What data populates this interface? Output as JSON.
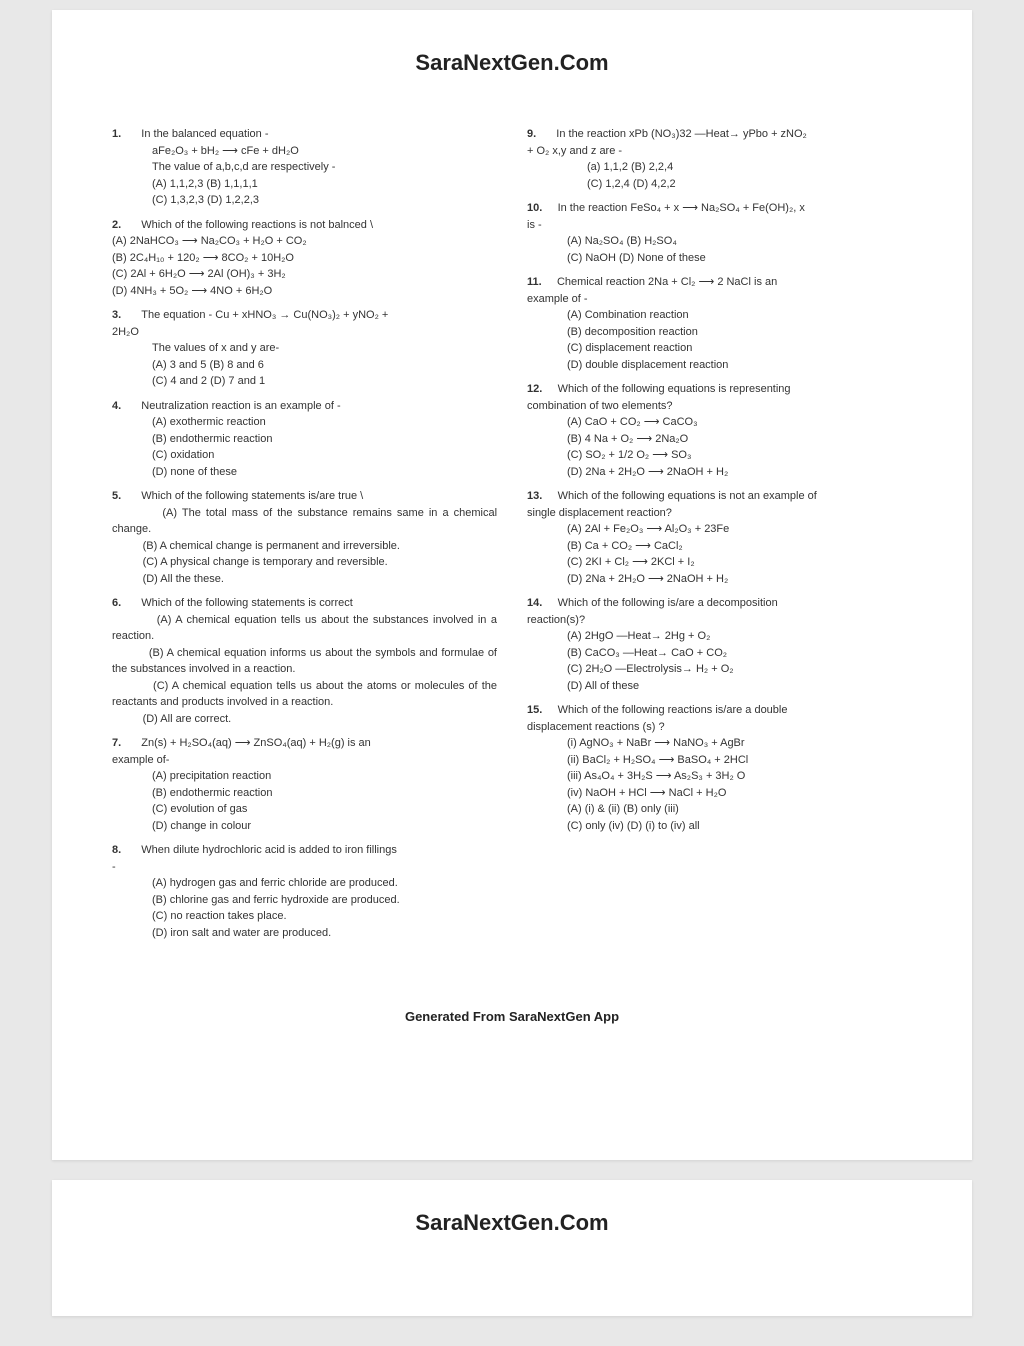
{
  "site": {
    "title": "SaraNextGen.Com"
  },
  "footer": {
    "text": "Generated From SaraNextGen App"
  },
  "left": [
    {
      "num": "1.",
      "text": "In the balanced equation -",
      "lines": [
        "aFe₂O₃ + bH₂ ⟶ cFe + dH₂O",
        "The value of a,b,c,d are respectively -",
        "(A) 1,1,2,3   (B) 1,1,1,1",
        "(C) 1,3,2,3   (D) 1,2,2,3"
      ]
    },
    {
      "num": "2.",
      "text": "Which of the following reactions is not balnced \\",
      "flat": [
        "(A) 2NaHCO₃ ⟶ Na₂CO₃ + H₂O + CO₂",
        "(B) 2C₄H₁₀ + 120₂ ⟶ 8CO₂ + 10H₂O",
        "(C) 2Al + 6H₂O ⟶ 2Al (OH)₃ + 3H₂",
        "(D) 4NH₃ + 5O₂ ⟶ 4NO + 6H₂O"
      ]
    },
    {
      "num": "3.",
      "text": "The equation - Cu + xHNO₃ → Cu(NO₃)₂ + yNO₂ +",
      "cont": "2H₂O",
      "lines": [
        "The values of x and y are-",
        "(A) 3 and 5   (B) 8 and 6",
        "(C) 4 and 2   (D) 7   and 1"
      ]
    },
    {
      "num": "4.",
      "text": "Neutralization reaction is an example of -",
      "lines": [
        "(A) exothermic reaction",
        "(B) endothermic reaction",
        "(C) oxidation",
        "(D) none of these"
      ]
    },
    {
      "num": "5.",
      "text": "Which of the following statements is/are true \\",
      "flat": [
        "          (A) The total mass of the substance remains same in a chemical change.",
        "          (B) A chemical change is permanent and irreversible.",
        "          (C) A physical change is temporary and reversible.",
        "          (D) All the these."
      ]
    },
    {
      "num": "6.",
      "text": "Which of the following statements is correct",
      "flat": [
        "          (A) A chemical equation tells us about the substances involved in a reaction.",
        "          (B) A chemical equation informs us about the symbols and formulae of the substances involved in a reaction.",
        "          (C) A chemical equation tells us about the atoms or molecules of the reactants and products involved in a reaction.",
        "          (D) All are correct."
      ]
    },
    {
      "num": "7.",
      "text": "Zn(s) + H₂SO₄(aq) ⟶ ZnSO₄(aq) + H₂(g) is an",
      "cont": "example of-",
      "lines": [
        "(A) precipitation reaction",
        "(B) endothermic reaction",
        "(C) evolution of gas",
        "(D) change in colour"
      ]
    },
    {
      "num": "8.",
      "text": "When dilute hydrochloric acid is added to iron fillings",
      "cont": "-",
      "lines": [
        "(A) hydrogen gas and ferric chloride are produced.",
        "(B) chlorine gas and ferric hydroxide are produced.",
        "(C) no reaction takes place.",
        "(D) iron salt and water are produced."
      ]
    }
  ],
  "right": [
    {
      "num": "9.",
      "text": "In the reaction xPb (NO₃)32 —Heat→ yPbo + zNO₂",
      "cont": "+ O₂ x,y and z are -",
      "lines2": [
        "(a) 1,1,2   (B) 2,2,4",
        "(C) 1,2,4   (D) 4,2,2"
      ]
    },
    {
      "num": "10.",
      "text": "In the reaction FeSo₄ + x ⟶ Na₂SO₄ + Fe(OH)₂, x",
      "cont": "is -",
      "lines": [
        "(A) Na₂SO₄   (B) H₂SO₄",
        "(C) NaOH      (D) None of these"
      ]
    },
    {
      "num": "11.",
      "text": "Chemical reaction 2Na + Cl₂ ⟶ 2 NaCl is an",
      "cont": "example of -",
      "lines": [
        "(A) Combination reaction",
        "(B) decomposition reaction",
        "(C) displacement reaction",
        "(D) double displacement reaction"
      ]
    },
    {
      "num": "12.",
      "text": "Which of the following equations is representing",
      "cont": "combination of two elements?",
      "lines": [
        "(A) CaO + CO₂ ⟶ CaCO₃",
        "(B) 4 Na + O₂ ⟶ 2Na₂O",
        "(C) SO₂ + 1/2 O₂ ⟶ SO₃",
        "(D) 2Na + 2H₂O ⟶ 2NaOH + H₂"
      ]
    },
    {
      "num": "13.",
      "text": "Which of the following equations is not an example of",
      "cont": "single displacement reaction?",
      "lines": [
        "(A) 2Al + Fe₂O₃ ⟶ Al₂O₃ + 23Fe",
        "(B) Ca + CO₂ ⟶ CaCl₂",
        "(C) 2KI + Cl₂ ⟶ 2KCl + I₂",
        "(D) 2Na + 2H₂O ⟶ 2NaOH + H₂"
      ]
    },
    {
      "num": "14.",
      "text": "Which of the following is/are a decomposition",
      "cont": "reaction(s)?",
      "lines": [
        "(A) 2HgO —Heat→ 2Hg + O₂",
        "(B) CaCO₃ —Heat→ CaO + CO₂",
        "(C) 2H₂O —Electrolysis→ H₂ + O₂",
        "(D) All of these"
      ]
    },
    {
      "num": "15.",
      "text": "Which of the following reactions is/are a double",
      "cont": "displacement reactions (s) ?",
      "lines": [
        "(i)  AgNO₃ + NaBr ⟶ NaNO₃ + AgBr",
        "(ii) BaCl₂ + H₂SO₄ ⟶ BaSO₄ + 2HCl",
        "(iii) As₄O₄ + 3H₂S ⟶ As₂S₃ + 3H₂ O",
        "(iv) NaOH + HCl ⟶ NaCl + H₂O",
        "(A) (i) & (ii)   (B) only (iii)",
        "(C) only (iv) (D) (i) to (iv) all"
      ]
    }
  ]
}
